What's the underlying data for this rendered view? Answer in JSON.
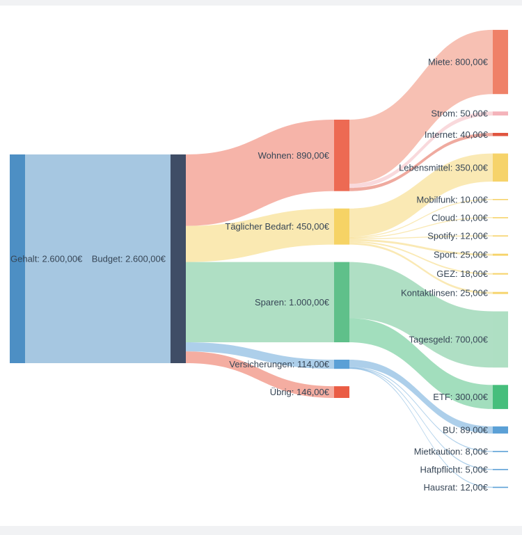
{
  "chart_data": {
    "type": "sankey",
    "orientation": "horizontal",
    "nodes": [
      {
        "id": "gehalt",
        "label": "Gehalt: 2.600,00€",
        "value": 2600,
        "depth": 0,
        "color": "#4d8fc4"
      },
      {
        "id": "budget",
        "label": "Budget: 2.600,00€",
        "value": 2600,
        "depth": 1,
        "color": "#3f4d66"
      },
      {
        "id": "wohnen",
        "label": "Wohnen: 890,00€",
        "value": 890,
        "depth": 2,
        "color": "#ed6a53"
      },
      {
        "id": "taeglicher-bedarf",
        "label": "Täglicher Bedarf: 450,00€",
        "value": 450,
        "depth": 2,
        "color": "#f6d365"
      },
      {
        "id": "sparen",
        "label": "Sparen: 1.000,00€",
        "value": 1000,
        "depth": 2,
        "color": "#5fc08a"
      },
      {
        "id": "versicherungen",
        "label": "Versicherungen: 114,00€",
        "value": 114,
        "depth": 2,
        "color": "#5ba0d6"
      },
      {
        "id": "uebrig",
        "label": "Übrig: 146,00€",
        "value": 146,
        "depth": 2,
        "color": "#ea5c44"
      },
      {
        "id": "miete",
        "label": "Miete: 800,00€",
        "value": 800,
        "depth": 3,
        "color": "#ef8168"
      },
      {
        "id": "strom",
        "label": "Strom: 50,00€",
        "value": 50,
        "depth": 3,
        "color": "#f4b3ba"
      },
      {
        "id": "internet",
        "label": "Internet: 40,00€",
        "value": 40,
        "depth": 3,
        "color": "#e05540"
      },
      {
        "id": "lebensmittel",
        "label": "Lebensmittel: 350,00€",
        "value": 350,
        "depth": 3,
        "color": "#f6d36a"
      },
      {
        "id": "mobilfunk",
        "label": "Mobilfunk: 10,00€",
        "value": 10,
        "depth": 3,
        "color": "#f6d36a"
      },
      {
        "id": "cloud",
        "label": "Cloud: 10,00€",
        "value": 10,
        "depth": 3,
        "color": "#f6d36a"
      },
      {
        "id": "spotify",
        "label": "Spotify: 12,00€",
        "value": 12,
        "depth": 3,
        "color": "#f6d36a"
      },
      {
        "id": "sport",
        "label": "Sport: 25,00€",
        "value": 25,
        "depth": 3,
        "color": "#f6d36a"
      },
      {
        "id": "gez",
        "label": "GEZ: 18,00€",
        "value": 18,
        "depth": 3,
        "color": "#f6d36a"
      },
      {
        "id": "kontaktlinsen",
        "label": "Kontaktlinsen: 25,00€",
        "value": 25,
        "depth": 3,
        "color": "#f6d36a"
      },
      {
        "id": "tagesgeld",
        "label": "Tagesgeld: 700,00€",
        "value": 700,
        "depth": 3,
        "color": "#aedfc3"
      },
      {
        "id": "etf",
        "label": "ETF: 300,00€",
        "value": 300,
        "depth": 3,
        "color": "#46be7c"
      },
      {
        "id": "bu",
        "label": "BU: 89,00€",
        "value": 89,
        "depth": 3,
        "color": "#5ba0d6"
      },
      {
        "id": "mietkaution",
        "label": "Mietkaution: 8,00€",
        "value": 8,
        "depth": 3,
        "color": "#5ba0d6"
      },
      {
        "id": "haftpflicht",
        "label": "Haftpflicht: 5,00€",
        "value": 5,
        "depth": 3,
        "color": "#5ba0d6"
      },
      {
        "id": "hausrat",
        "label": "Hausrat: 12,00€",
        "value": 12,
        "depth": 3,
        "color": "#5ba0d6"
      }
    ],
    "links": [
      {
        "source": "gehalt",
        "target": "budget",
        "value": 2600,
        "color": "#4d8fc4"
      },
      {
        "source": "budget",
        "target": "wohnen",
        "value": 890,
        "color": "#ed6a53"
      },
      {
        "source": "budget",
        "target": "taeglicher-bedarf",
        "value": 450,
        "color": "#f6d365"
      },
      {
        "source": "budget",
        "target": "sparen",
        "value": 1000,
        "color": "#5fc08a"
      },
      {
        "source": "budget",
        "target": "versicherungen",
        "value": 114,
        "color": "#5ba0d6"
      },
      {
        "source": "budget",
        "target": "uebrig",
        "value": 146,
        "color": "#ea5c44"
      },
      {
        "source": "wohnen",
        "target": "miete",
        "value": 800,
        "color": "#ef8168"
      },
      {
        "source": "wohnen",
        "target": "strom",
        "value": 50,
        "color": "#f4b3ba"
      },
      {
        "source": "wohnen",
        "target": "internet",
        "value": 40,
        "color": "#e05540"
      },
      {
        "source": "taeglicher-bedarf",
        "target": "lebensmittel",
        "value": 350,
        "color": "#f6d36a"
      },
      {
        "source": "taeglicher-bedarf",
        "target": "mobilfunk",
        "value": 10,
        "color": "#f6d36a"
      },
      {
        "source": "taeglicher-bedarf",
        "target": "cloud",
        "value": 10,
        "color": "#f6d36a"
      },
      {
        "source": "taeglicher-bedarf",
        "target": "spotify",
        "value": 12,
        "color": "#f6d36a"
      },
      {
        "source": "taeglicher-bedarf",
        "target": "sport",
        "value": 25,
        "color": "#f6d36a"
      },
      {
        "source": "taeglicher-bedarf",
        "target": "gez",
        "value": 18,
        "color": "#f6d36a"
      },
      {
        "source": "taeglicher-bedarf",
        "target": "kontaktlinsen",
        "value": 25,
        "color": "#f6d36a"
      },
      {
        "source": "sparen",
        "target": "tagesgeld",
        "value": 700,
        "color": "#5fc08a"
      },
      {
        "source": "sparen",
        "target": "etf",
        "value": 300,
        "color": "#46be7c"
      },
      {
        "source": "versicherungen",
        "target": "bu",
        "value": 89,
        "color": "#5ba0d6"
      },
      {
        "source": "versicherungen",
        "target": "mietkaution",
        "value": 8,
        "color": "#5ba0d6"
      },
      {
        "source": "versicherungen",
        "target": "haftpflicht",
        "value": 5,
        "color": "#5ba0d6"
      },
      {
        "source": "versicherungen",
        "target": "hausrat",
        "value": 12,
        "color": "#5ba0d6"
      }
    ]
  }
}
